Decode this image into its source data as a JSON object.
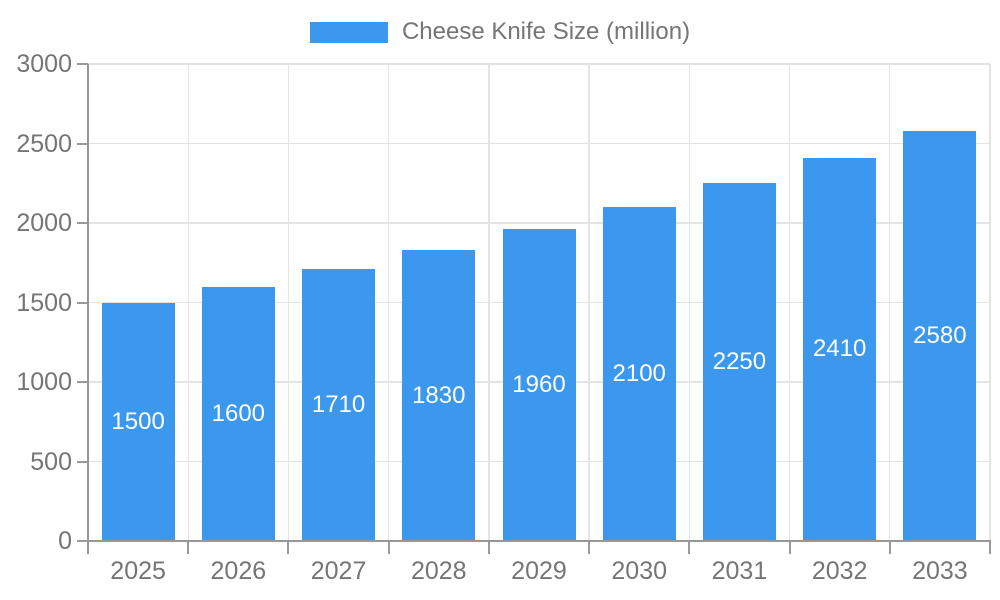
{
  "legend": {
    "label": "Cheese Knife Size (million)",
    "swatch_color": "#3b98ec"
  },
  "colors": {
    "bar": "#3b98ec",
    "axis_text": "#757575",
    "bar_label_text": "#ffffff",
    "gridline": "#e4e4e4",
    "axis_line": "#979797"
  },
  "chart_data": {
    "type": "bar",
    "title": "Cheese Knife Size (million)",
    "categories": [
      "2025",
      "2026",
      "2027",
      "2028",
      "2029",
      "2030",
      "2031",
      "2032",
      "2033"
    ],
    "values": [
      1500,
      1600,
      1710,
      1830,
      1960,
      2100,
      2250,
      2410,
      2580
    ],
    "series": [
      {
        "name": "Cheese Knife Size (million)",
        "values": [
          1500,
          1600,
          1710,
          1830,
          1960,
          2100,
          2250,
          2410,
          2580
        ]
      }
    ],
    "xlabel": "",
    "ylabel": "",
    "ylim": [
      0,
      3000
    ],
    "yticks": [
      0,
      500,
      1000,
      1500,
      2000,
      2500,
      3000
    ],
    "grid": true,
    "legend_position": "top",
    "bar_labels_visible": true
  }
}
